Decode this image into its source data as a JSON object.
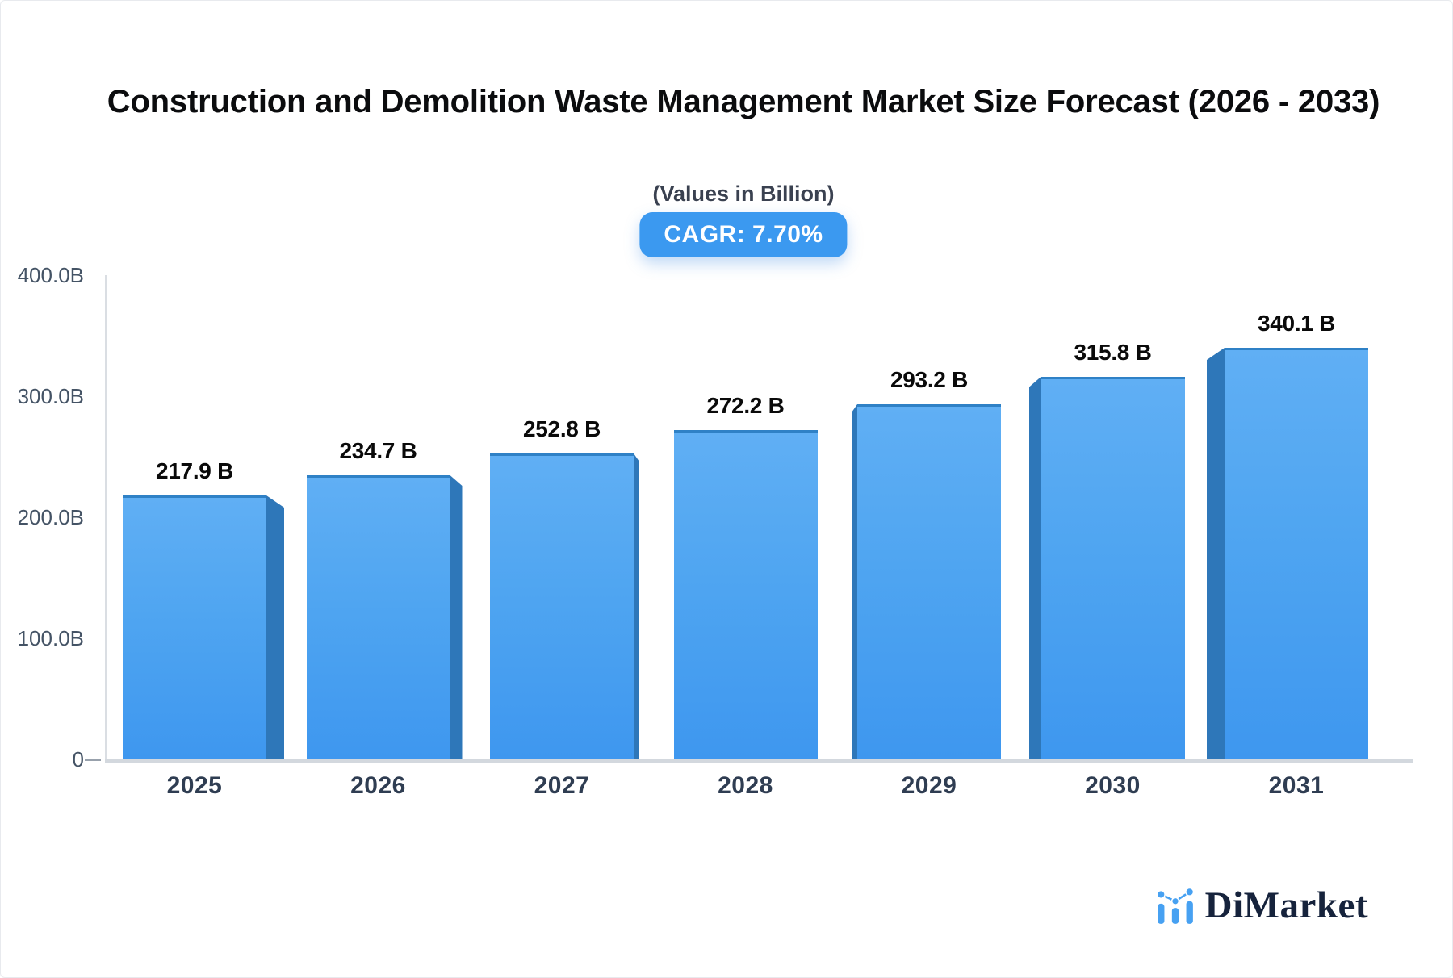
{
  "header": {
    "title": "Construction and Demolition Waste Management Market Size Forecast (2026 - 2033)",
    "subtitle": "(Values in Billion)",
    "cagr_badge": "CAGR: 7.70%"
  },
  "chart_data": {
    "type": "bar",
    "title": "Construction and Demolition Waste Management Market Size Forecast (2026 - 2033)",
    "subtitle": "(Values in Billion)",
    "cagr_pct": 7.7,
    "categories": [
      "2025",
      "2026",
      "2027",
      "2028",
      "2029",
      "2030",
      "2031"
    ],
    "values": [
      217.9,
      234.7,
      252.8,
      272.2,
      293.2,
      315.8,
      340.1
    ],
    "value_labels": [
      "217.9 B",
      "234.7 B",
      "252.8 B",
      "272.2 B",
      "293.2 B",
      "315.8 B",
      "340.1 B"
    ],
    "y_ticks": [
      {
        "label": "400.0B",
        "value": 400
      },
      {
        "label": "300.0B",
        "value": 300
      },
      {
        "label": "200.0B",
        "value": 200
      },
      {
        "label": "100.0B",
        "value": 100
      },
      {
        "label": "0",
        "value": 0
      }
    ],
    "ylim": [
      0,
      400
    ],
    "xlabel": "",
    "ylabel": "",
    "grid": false,
    "legend": "none",
    "colors": {
      "bar_gradient_top": "#60aff4",
      "bar_gradient_bottom": "#3e97ef",
      "bar_side_face": "#2e77b9",
      "bar_top_edge": "#2f81c6",
      "accent_badge": "#3b99f0",
      "axis_line": "#dadee3",
      "baseline": "#d3d8de",
      "tick_text": "#445365",
      "category_text": "#2f3d52",
      "value_text": "#0a0a0a"
    }
  },
  "branding": {
    "logo_text": "DiMarket",
    "logo_icon": "bar-line-chart-icon",
    "logo_color": "#16233c",
    "logo_icon_color": "#47a1f2"
  }
}
